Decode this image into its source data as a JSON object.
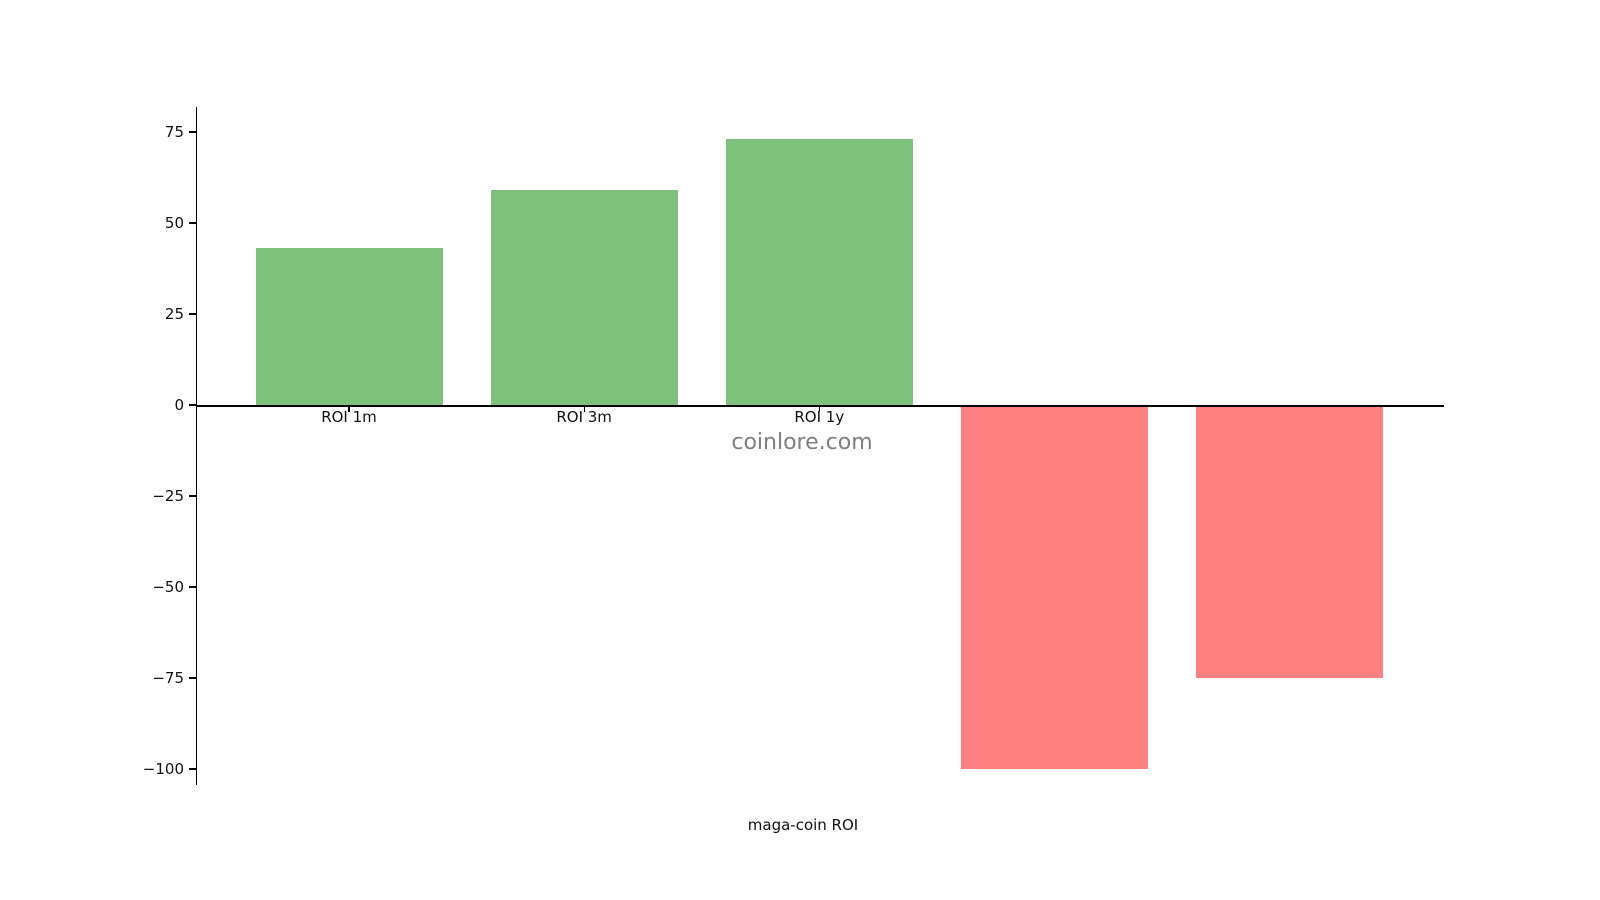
{
  "chart_data": {
    "type": "bar",
    "title": "maga-coin ROI",
    "watermark": "coinlore.com",
    "categories": [
      "ROI 1m",
      "ROI 3m",
      "ROI 1y",
      "",
      ""
    ],
    "values": [
      43,
      59,
      73,
      -100,
      -75
    ],
    "bar_colors": [
      "#7dc17d",
      "#7dc17d",
      "#7dc17d",
      "#ff8080",
      "#ff8080"
    ],
    "positive_color": "#7dc17d",
    "negative_color": "#ff8080",
    "xlabel": "",
    "ylabel": "",
    "y_ticks": [
      75,
      50,
      25,
      0,
      -25,
      -50,
      -75,
      -100
    ],
    "y_tick_labels": [
      "75",
      "50",
      "25",
      "0",
      "−25",
      "−50",
      "−75",
      "−100"
    ],
    "ylim": [
      -104.5,
      82
    ],
    "grid": false,
    "legend": null,
    "axis_color": "#000000",
    "tick_text_color": "#111111",
    "watermark_color": "#7f7f7f"
  }
}
